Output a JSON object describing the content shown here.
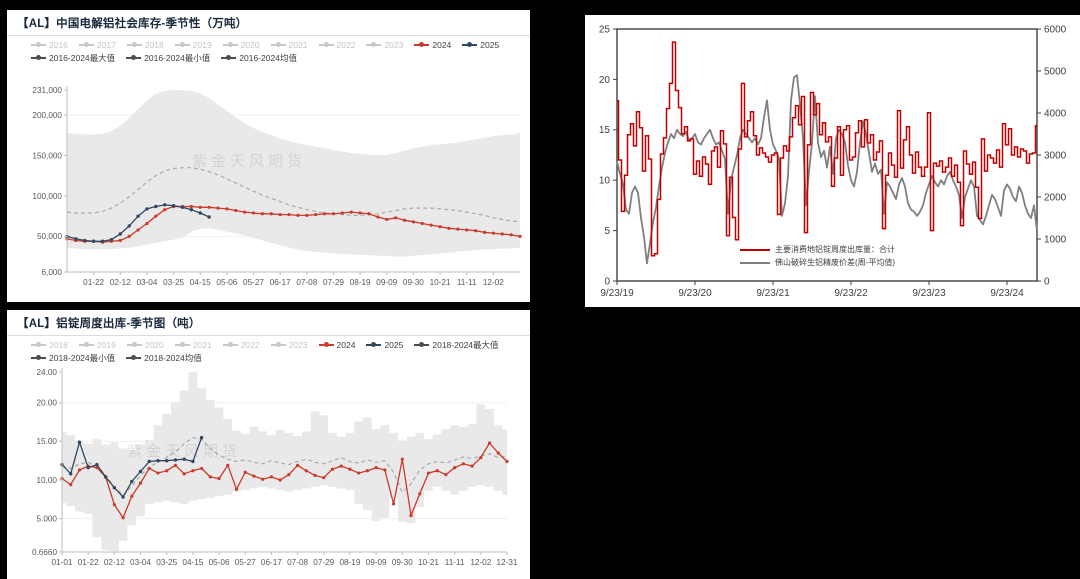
{
  "page": {
    "background": "#000000",
    "watermark_color": "#E3E3E3"
  },
  "chart_data": [
    {
      "id": "social-inventory-seasonal",
      "type": "line",
      "title": "【AL】中国电解铝社会库存-季节性（万吨）",
      "watermark": "紫金天风期货",
      "legend": [
        {
          "label": "2016",
          "color": "#C8C8C8",
          "muted": true
        },
        {
          "label": "2017",
          "color": "#C8C8C8",
          "muted": true
        },
        {
          "label": "2018",
          "color": "#C8C8C8",
          "muted": true
        },
        {
          "label": "2019",
          "color": "#C8C8C8",
          "muted": true
        },
        {
          "label": "2020",
          "color": "#C8C8C8",
          "muted": true
        },
        {
          "label": "2021",
          "color": "#C8C8C8",
          "muted": true
        },
        {
          "label": "2022",
          "color": "#C8C8C8",
          "muted": true
        },
        {
          "label": "2023",
          "color": "#C8C8C8",
          "muted": true
        },
        {
          "label": "2024",
          "color": "#CB3A2B",
          "muted": false
        },
        {
          "label": "2025",
          "color": "#31485F",
          "muted": false
        },
        {
          "label": "2016-2024最大值",
          "color": "#4D4D4D",
          "muted": false
        },
        {
          "label": "2016-2024最小值",
          "color": "#4D4D4D",
          "muted": false
        },
        {
          "label": "2016-2024均值",
          "color": "#4D4D4D",
          "muted": false
        }
      ],
      "ylim": [
        6,
        231
      ],
      "yticks": [
        {
          "v": 6,
          "label": "6,000"
        },
        {
          "v": 50,
          "label": "50,000"
        },
        {
          "v": 100,
          "label": "100,000"
        },
        {
          "v": 150,
          "label": "150,000"
        },
        {
          "v": 200,
          "label": "200,000"
        },
        {
          "v": 231,
          "label": "231,000"
        }
      ],
      "xtick_labels": [
        "01-22",
        "02-12",
        "03-04",
        "03-25",
        "04-15",
        "05-06",
        "05-27",
        "06-17",
        "07-08",
        "07-29",
        "08-19",
        "09-09",
        "09-30",
        "10-21",
        "11-11",
        "12-02"
      ],
      "xtick_weeks": [
        3,
        6,
        9,
        12,
        15,
        18,
        21,
        24,
        27,
        30,
        33,
        36,
        39,
        42,
        45,
        48
      ],
      "n_weeks": 52,
      "series": {
        "band_max": [
          178,
          177,
          176,
          176,
          177,
          180,
          187,
          196,
          207,
          218,
          226,
          230,
          231,
          231,
          230,
          227,
          221,
          213,
          205,
          197,
          190,
          184,
          179,
          175,
          171,
          168,
          165,
          163,
          161,
          159,
          157,
          155,
          153,
          152,
          151,
          150,
          151,
          153,
          156,
          159,
          161,
          163,
          164,
          165,
          166,
          168,
          170,
          172,
          174,
          175,
          176,
          178
        ],
        "band_min": [
          36,
          35,
          34,
          34,
          34,
          34,
          35,
          36,
          38,
          40,
          42,
          44,
          46,
          48,
          56,
          59,
          60,
          58,
          56,
          54,
          51,
          48,
          45,
          42,
          39,
          36,
          34,
          32,
          31,
          30,
          29,
          28,
          28,
          27,
          27,
          26,
          26,
          25,
          25,
          26,
          27,
          28,
          29,
          30,
          31,
          32,
          33,
          34,
          34,
          35,
          35,
          36
        ],
        "mean": [
          80,
          79,
          79,
          79,
          81,
          85,
          91,
          99,
          108,
          117,
          125,
          131,
          134,
          135,
          135,
          133,
          130,
          126,
          121,
          116,
          111,
          106,
          101,
          97,
          93,
          89,
          86,
          83,
          81,
          79,
          78,
          77,
          76,
          76,
          77,
          78,
          80,
          82,
          84,
          85,
          85,
          85,
          84,
          83,
          82,
          80,
          78,
          76,
          73,
          71,
          69,
          68
        ],
        "y2024": [
          47,
          45,
          44,
          44,
          43,
          44,
          45,
          50,
          58,
          66,
          75,
          83,
          87,
          87,
          87,
          86,
          86,
          85,
          84,
          82,
          80,
          79,
          78,
          78,
          77,
          77,
          76,
          76,
          77,
          78,
          78,
          79,
          80,
          79,
          78,
          74,
          71,
          73,
          70,
          68,
          66,
          64,
          62,
          60,
          59,
          58,
          57,
          55,
          54,
          53,
          52,
          50
        ],
        "y2025": [
          50,
          47,
          45,
          44,
          44,
          46,
          53,
          63,
          75,
          84,
          87,
          89,
          88,
          86,
          83,
          79,
          74
        ]
      }
    },
    {
      "id": "outbound-vs-scrap-spread",
      "type": "line",
      "legend": [
        {
          "label": "主要消费地铝锭周度出库量：合计",
          "color": "#C00000"
        },
        {
          "label": "佛山破碎生铝精废价差(周-平均值)",
          "color": "#7F7F7F"
        }
      ],
      "left_ylim": [
        0,
        25
      ],
      "left_yticks": [
        0,
        5,
        10,
        15,
        20,
        25
      ],
      "right_ylim": [
        0,
        6000
      ],
      "right_yticks": [
        0,
        1000,
        2000,
        3000,
        4000,
        5000,
        6000
      ],
      "xtick_labels": [
        "9/23/19",
        "9/23/20",
        "9/23/21",
        "9/23/22",
        "9/23/23",
        "9/23/24"
      ],
      "xtick_idx": [
        0,
        26,
        52,
        78,
        104,
        130
      ],
      "n": 141,
      "series": {
        "outbound": [
          17.9,
          12.0,
          6.9,
          10.5,
          14.5,
          15.6,
          13.4,
          16.8,
          15.2,
          10.9,
          14.4,
          12.1,
          2.5,
          2.7,
          8.1,
          12.6,
          14.2,
          17.1,
          19.6,
          23.7,
          18.9,
          17.2,
          14.6,
          15.3,
          13.9,
          14.1,
          10.6,
          11.9,
          10.4,
          12.3,
          11.6,
          9.6,
          12.9,
          13.3,
          11.3,
          14.9,
          13.6,
          4.5,
          10.3,
          6.3,
          4.1,
          13.1,
          19.6,
          14.3,
          15.9,
          16.8,
          14.4,
          12.5,
          13.2,
          12.7,
          12.3,
          11.8,
          12.5,
          12.7,
          6.6,
          12.2,
          13.4,
          12.9,
          14.3,
          16.2,
          17.4,
          15.5,
          18.3,
          4.8,
          13.5,
          18.7,
          16.5,
          17.6,
          14.5,
          15.7,
          13.8,
          14.3,
          9.4,
          12.2,
          15.3,
          10.5,
          15.0,
          15.4,
          12.0,
          12.3,
          14.7,
          15.9,
          13.3,
          16.0,
          13.7,
          14.5,
          12.0,
          12.8,
          13.9,
          5.2,
          10.5,
          12.7,
          11.5,
          10.3,
          16.9,
          11.2,
          14.0,
          15.3,
          12.5,
          10.7,
          12.8,
          11.3,
          10.4,
          11.3,
          16.7,
          5.0,
          11.7,
          11.4,
          11.9,
          10.8,
          11.3,
          12.2,
          10.4,
          11.5,
          9.8,
          5.5,
          12.9,
          11.6,
          10.6,
          11.8,
          9.3,
          6.2,
          14.1,
          10.9,
          12.5,
          12.2,
          11.7,
          13.0,
          11.3,
          15.6,
          13.5,
          15.1,
          12.5,
          13.3,
          12.3,
          13.1,
          12.9,
          11.7,
          12.6,
          12.7,
          15.4
        ],
        "spread": [
          2850,
          2550,
          2300,
          1700,
          1600,
          2100,
          2250,
          2100,
          1500,
          1050,
          420,
          900,
          1400,
          1750,
          2250,
          2700,
          3050,
          3300,
          3500,
          3400,
          3600,
          3500,
          3450,
          3550,
          3350,
          3400,
          3500,
          3300,
          3250,
          3400,
          3500,
          3600,
          3400,
          3250,
          3300,
          3100,
          2900,
          1600,
          2400,
          2700,
          3000,
          3400,
          3600,
          3500,
          3400,
          3300,
          3400,
          3250,
          3400,
          3900,
          4300,
          3600,
          3250,
          3100,
          2900,
          1550,
          1850,
          2500,
          4300,
          4850,
          4900,
          4200,
          3400,
          1800,
          2600,
          3300,
          4400,
          3300,
          2950,
          3100,
          2700,
          3200,
          2550,
          3400,
          3600,
          3500,
          3300,
          2750,
          2400,
          2250,
          2600,
          3300,
          3800,
          3500,
          3050,
          2600,
          2800,
          2550,
          2650,
          1600,
          2350,
          2250,
          2100,
          1950,
          2300,
          2450,
          2250,
          1850,
          1700,
          1650,
          1550,
          1650,
          1800,
          2100,
          2300,
          2500,
          2350,
          2250,
          2400,
          2300,
          2500,
          2600,
          2400,
          2250,
          2050,
          1500,
          2000,
          2200,
          2400,
          2250,
          1550,
          1450,
          1350,
          1550,
          1800,
          2050,
          1950,
          1750,
          1550,
          2150,
          2300,
          2200,
          2000,
          1900,
          2250,
          2100,
          1800,
          1600,
          1500,
          1800,
          1200
        ]
      }
    },
    {
      "id": "ingot-weekly-outbound-seasonal",
      "type": "line",
      "title": "【AL】铝锭周度出库-季节图（吨）",
      "watermark": "紫金天风期货",
      "legend": [
        {
          "label": "2018",
          "color": "#C8C8C8",
          "muted": true
        },
        {
          "label": "2019",
          "color": "#C8C8C8",
          "muted": true
        },
        {
          "label": "2020",
          "color": "#C8C8C8",
          "muted": true
        },
        {
          "label": "2021",
          "color": "#C8C8C8",
          "muted": true
        },
        {
          "label": "2022",
          "color": "#C8C8C8",
          "muted": true
        },
        {
          "label": "2023",
          "color": "#C8C8C8",
          "muted": true
        },
        {
          "label": "2024",
          "color": "#CB3A2B",
          "muted": false
        },
        {
          "label": "2025",
          "color": "#31485F",
          "muted": false
        },
        {
          "label": "2018-2024最大值",
          "color": "#4D4D4D",
          "muted": false
        },
        {
          "label": "2018-2024最小值",
          "color": "#4D4D4D",
          "muted": false
        },
        {
          "label": "2018-2024均值",
          "color": "#4D4D4D",
          "muted": false
        }
      ],
      "ylim": [
        0.666,
        24
      ],
      "yticks": [
        {
          "v": 0.666,
          "label": "0.6660"
        },
        {
          "v": 5,
          "label": "5.000"
        },
        {
          "v": 10,
          "label": "10.00"
        },
        {
          "v": 15,
          "label": "15.00"
        },
        {
          "v": 20,
          "label": "20.00"
        },
        {
          "v": 24,
          "label": "24.00"
        }
      ],
      "xtick_labels": [
        "01-01",
        "01-22",
        "02-12",
        "03-04",
        "03-25",
        "04-15",
        "05-06",
        "05-27",
        "06-17",
        "07-08",
        "07-29",
        "08-19",
        "09-09",
        "09-30",
        "10-21",
        "11-11",
        "12-02",
        "12-31"
      ],
      "xtick_weeks": [
        0,
        3,
        6,
        9,
        12,
        15,
        18,
        21,
        24,
        27,
        30,
        33,
        36,
        39,
        42,
        45,
        48,
        51
      ],
      "n_weeks": 52,
      "series": {
        "band_max": [
          16.2,
          15.8,
          15.1,
          14.7,
          15.3,
          14.6,
          14.9,
          14.1,
          13.9,
          14.6,
          15.2,
          17.1,
          18.6,
          20.1,
          21.6,
          24.0,
          21.9,
          20.4,
          19.4,
          17.9,
          16.4,
          16.0,
          16.9,
          16.3,
          15.8,
          16.5,
          16.1,
          15.7,
          16.3,
          18.9,
          18.4,
          16.1,
          15.6,
          16.1,
          17.6,
          18.1,
          16.6,
          17.1,
          16.1,
          15.1,
          15.6,
          16.1,
          15.3,
          15.9,
          16.6,
          17.1,
          16.9,
          17.3,
          19.8,
          19.2,
          17.1,
          16.6
        ],
        "band_min": [
          7.0,
          6.6,
          5.9,
          5.6,
          2.6,
          0.9,
          0.8,
          2.1,
          4.1,
          5.3,
          6.9,
          7.1,
          7.3,
          7.1,
          6.9,
          7.3,
          7.5,
          7.7,
          7.9,
          8.1,
          8.5,
          8.7,
          8.9,
          9.1,
          8.9,
          8.7,
          8.5,
          8.7,
          8.9,
          9.1,
          9.3,
          9.1,
          8.9,
          8.7,
          6.9,
          6.1,
          4.7,
          5.1,
          7.6,
          4.6,
          4.4,
          6.5,
          8.6,
          9.1,
          8.6,
          8.1,
          8.6,
          9.1,
          9.3,
          9.1,
          8.6,
          8.1
        ],
        "mean": [
          11.9,
          11.5,
          12.1,
          12.3,
          11.8,
          10.6,
          9.1,
          8.0,
          9.2,
          10.6,
          11.7,
          12.3,
          12.9,
          13.6,
          14.7,
          15.5,
          15.3,
          14.1,
          13.2,
          12.7,
          12.4,
          12.6,
          12.3,
          12.1,
          12.5,
          12.2,
          12.0,
          12.4,
          12.7,
          12.3,
          12.1,
          12.5,
          12.9,
          12.4,
          12.2,
          12.6,
          12.3,
          12.5,
          11.0,
          8.4,
          9.5,
          11.3,
          12.1,
          12.4,
          12.2,
          12.6,
          13.0,
          12.8,
          13.1,
          13.4,
          12.9,
          13.1
        ],
        "y2024": [
          10.2,
          9.4,
          11.3,
          11.8,
          11.6,
          10.4,
          6.8,
          5.1,
          7.9,
          9.6,
          11.5,
          10.9,
          11.2,
          11.9,
          10.8,
          11.2,
          11.5,
          10.4,
          10.2,
          11.9,
          8.8,
          11.0,
          10.5,
          10.1,
          10.4,
          10.0,
          10.7,
          11.9,
          11.2,
          10.6,
          10.3,
          11.4,
          11.8,
          11.4,
          10.9,
          11.2,
          11.6,
          11.3,
          6.9,
          12.7,
          5.4,
          8.2,
          10.9,
          11.2,
          10.7,
          11.6,
          12.1,
          11.8,
          12.9,
          14.8,
          13.5,
          12.4
        ],
        "y2025": [
          12.0,
          10.8,
          14.9,
          11.6,
          12.0,
          10.4,
          9.0,
          7.8,
          9.8,
          11.1,
          12.4,
          12.5,
          12.5,
          12.6,
          12.7,
          12.4,
          15.5
        ]
      }
    }
  ]
}
